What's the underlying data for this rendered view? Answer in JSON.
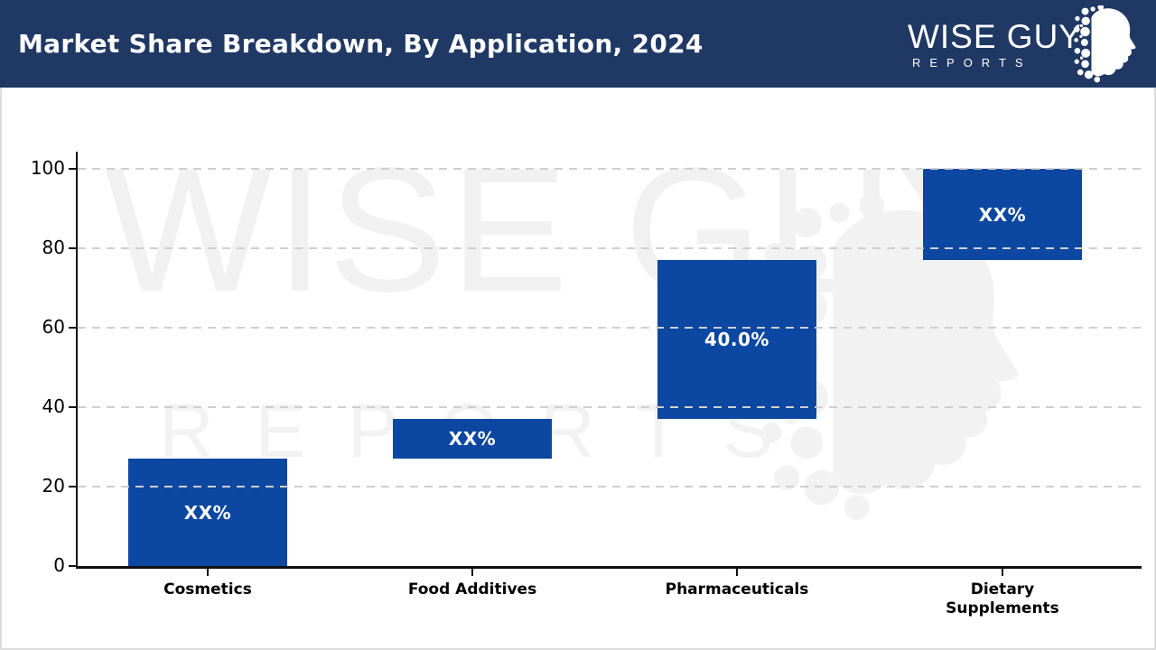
{
  "header": {
    "title": "Market Share Breakdown, By Application, 2024",
    "bg_color": "#1f3864",
    "logo": {
      "line1": "WISE GUY",
      "line2": "REPORTS"
    }
  },
  "watermark": {
    "line1": "WISE GUY",
    "line2": "REPORTS"
  },
  "chart_data": {
    "type": "bar",
    "subtype": "floating-waterfall",
    "title": "Market Share Breakdown, By Application, 2024",
    "categories": [
      "Cosmetics",
      "Food Additives",
      "Pharmaceuticals",
      "Dietary Supplements"
    ],
    "bars": [
      {
        "category": "Cosmetics",
        "start": 0,
        "end": 27,
        "label": "XX%"
      },
      {
        "category": "Food Additives",
        "start": 27,
        "end": 37,
        "label": "XX%"
      },
      {
        "category": "Pharmaceuticals",
        "start": 37,
        "end": 77,
        "label": "40.0%",
        "value": 40.0
      },
      {
        "category": "Dietary Supplements",
        "start": 77,
        "end": 100,
        "label": "XX%"
      }
    ],
    "xlabel": "",
    "ylabel": "",
    "yticks": [
      0,
      20,
      40,
      60,
      80,
      100
    ],
    "ylim": [
      0,
      104
    ],
    "bar_color": "#0c47a1",
    "grid": "horizontal dashed, drawn over bars",
    "gridline_color": "#cfcfcf",
    "legend": false
  }
}
